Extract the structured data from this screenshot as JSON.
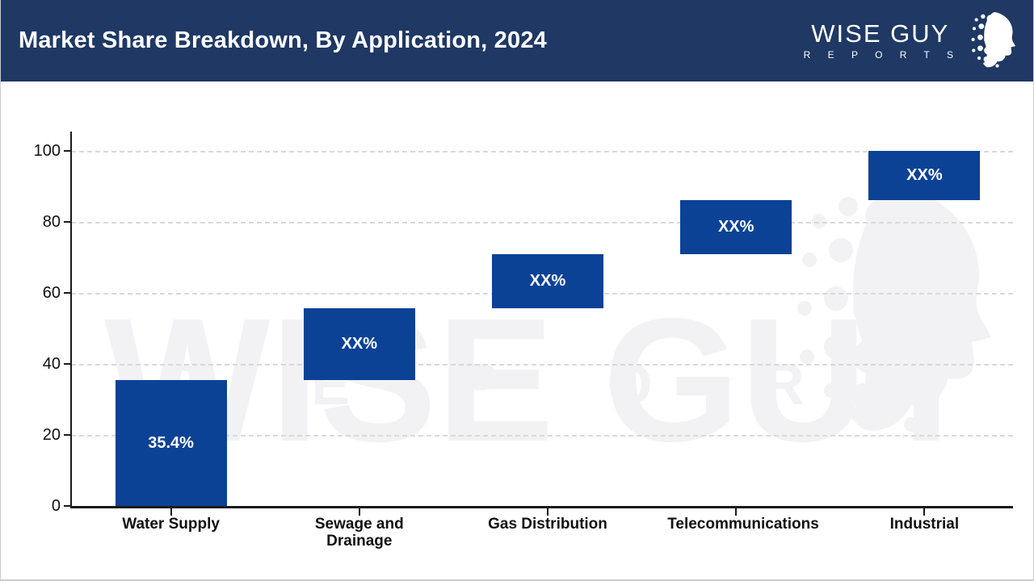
{
  "header": {
    "title": "Market Share Breakdown, By Application, 2024",
    "logo": {
      "line1": "WISE GUY",
      "line2": "R E P O R T S",
      "face_icon": "face-profile-dots-icon"
    }
  },
  "watermark": {
    "line1": "WISE GUY",
    "line2": "R E P O R T S",
    "face_icon": "face-profile-dots-watermark-icon"
  },
  "colors": {
    "header_bg": "#1f3864",
    "bar": "#0b4296",
    "bar_label": "#ffffff",
    "gridline": "#d9d9d9",
    "axis": "#1a1a1a",
    "watermark": "#f2f2f4"
  },
  "chart_data": {
    "type": "bar",
    "subtype": "waterfall",
    "title": "Market Share Breakdown, By Application, 2024",
    "categories": [
      "Water Supply",
      "Sewage and Drainage",
      "Gas Distribution",
      "Telecommunications",
      "Industrial"
    ],
    "segments": [
      {
        "category": "Water Supply",
        "start": 0,
        "end": 35.4,
        "label": "35.4%"
      },
      {
        "category": "Sewage and Drainage",
        "start": 35.4,
        "end": 55.6,
        "label": "XX%"
      },
      {
        "category": "Gas Distribution",
        "start": 55.6,
        "end": 71.0,
        "label": "XX%"
      },
      {
        "category": "Telecommunications",
        "start": 71.0,
        "end": 86.2,
        "label": "XX%"
      },
      {
        "category": "Industrial",
        "start": 86.2,
        "end": 100,
        "label": "XX%"
      }
    ],
    "xlabel": "",
    "ylabel": "",
    "ylim": [
      0,
      100
    ],
    "yticks": [
      0,
      20,
      40,
      60,
      80,
      100
    ],
    "grid": "horizontal-dashed",
    "legend": "none"
  }
}
